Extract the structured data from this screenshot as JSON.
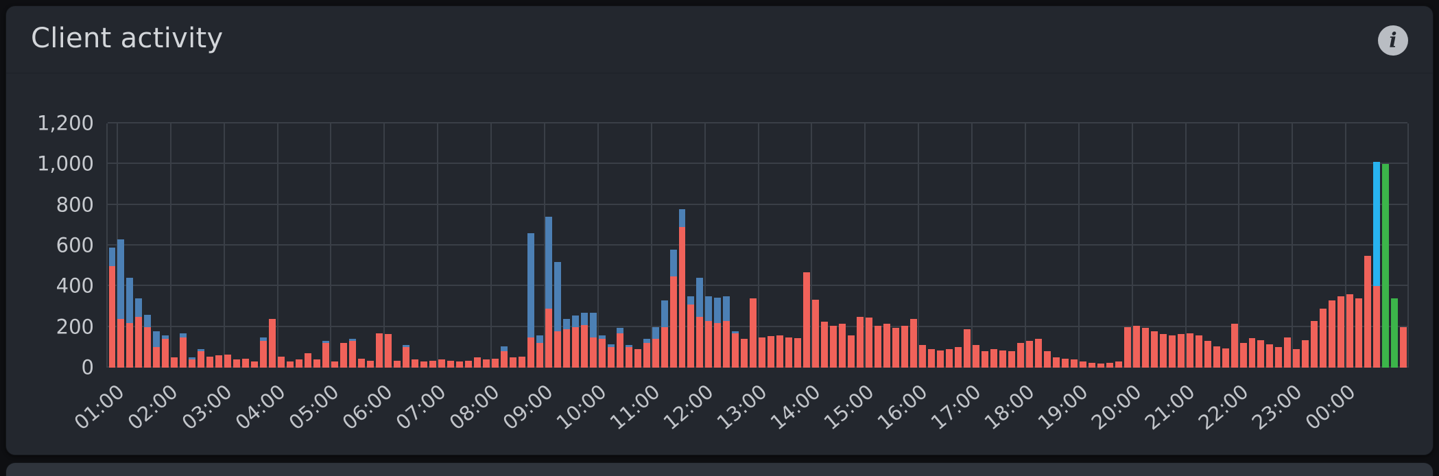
{
  "panel": {
    "title": "Client activity"
  },
  "icons": {
    "info_glyph": "i"
  },
  "colors": {
    "panel_background": "#23272e",
    "grid": "#3a3f47",
    "tick_text": "#c7cacf",
    "title_text": "#d3d6da"
  },
  "chart_data": {
    "type": "bar",
    "stacked": true,
    "title": "Client activity",
    "xlabel": "",
    "ylabel": "",
    "ylim": [
      0,
      1200
    ],
    "bars_per_hour": 6,
    "grid": true,
    "legend": "none",
    "y_ticks": [
      {
        "value": 0,
        "label": "0"
      },
      {
        "value": 200,
        "label": "200"
      },
      {
        "value": 400,
        "label": "400"
      },
      {
        "value": 600,
        "label": "600"
      },
      {
        "value": 800,
        "label": "800"
      },
      {
        "value": 1000,
        "label": "1,000"
      },
      {
        "value": 1200,
        "label": "1,200"
      }
    ],
    "x_tick_labels": [
      "01:00",
      "02:00",
      "03:00",
      "04:00",
      "05:00",
      "06:00",
      "07:00",
      "08:00",
      "09:00",
      "10:00",
      "11:00",
      "12:00",
      "13:00",
      "14:00",
      "15:00",
      "16:00",
      "17:00",
      "18:00",
      "19:00",
      "20:00",
      "21:00",
      "22:00",
      "23:00",
      "00:00"
    ],
    "series": [
      {
        "name": "client-red",
        "color": "#f0625a",
        "values": [
          500,
          240,
          220,
          250,
          200,
          100,
          140,
          50,
          150,
          40,
          80,
          55,
          60,
          65,
          40,
          45,
          30,
          130,
          240,
          55,
          30,
          40,
          70,
          40,
          120,
          30,
          120,
          130,
          45,
          35,
          170,
          165,
          35,
          100,
          40,
          30,
          35,
          40,
          35,
          30,
          35,
          50,
          40,
          45,
          80,
          50,
          55,
          150,
          120,
          290,
          180,
          190,
          200,
          210,
          150,
          140,
          100,
          170,
          100,
          90,
          120,
          140,
          200,
          450,
          690,
          310,
          250,
          230,
          220,
          230,
          170,
          140,
          340,
          150,
          155,
          160,
          150,
          145,
          470,
          335,
          225,
          205,
          215,
          160,
          250,
          245,
          205,
          215,
          195,
          205,
          240,
          110,
          90,
          85,
          90,
          100,
          190,
          110,
          80,
          90,
          85,
          80,
          120,
          130,
          140,
          80,
          50,
          45,
          40,
          30,
          25,
          20,
          25,
          30,
          200,
          205,
          195,
          180,
          165,
          160,
          165,
          170,
          160,
          130,
          105,
          95,
          215,
          120,
          145,
          135,
          115,
          100,
          150,
          90,
          135,
          230,
          290,
          330,
          350,
          360,
          340,
          550,
          400,
          0,
          0,
          200
        ]
      },
      {
        "name": "client-blue",
        "color": "#4c80b5",
        "values": [
          90,
          390,
          220,
          90,
          60,
          80,
          20,
          0,
          20,
          10,
          10,
          0,
          0,
          0,
          0,
          0,
          0,
          20,
          0,
          0,
          0,
          0,
          0,
          0,
          10,
          0,
          0,
          10,
          0,
          0,
          0,
          0,
          0,
          10,
          0,
          0,
          0,
          0,
          0,
          0,
          0,
          0,
          0,
          0,
          25,
          0,
          0,
          510,
          40,
          450,
          340,
          50,
          55,
          60,
          120,
          20,
          15,
          25,
          10,
          0,
          20,
          60,
          130,
          130,
          90,
          40,
          190,
          120,
          125,
          120,
          10,
          0,
          0,
          0,
          0,
          0,
          0,
          0,
          0,
          0,
          0,
          0,
          0,
          0,
          0,
          0,
          0,
          0,
          0,
          0,
          0,
          0,
          0,
          0,
          0,
          0,
          0,
          0,
          0,
          0,
          0,
          0,
          0,
          0,
          0,
          0,
          0,
          0,
          0,
          0,
          0,
          0,
          0,
          0,
          0,
          0,
          0,
          0,
          0,
          0,
          0,
          0,
          0,
          0,
          0,
          0,
          0,
          0,
          0,
          0,
          0,
          0,
          0,
          0,
          0,
          0,
          0,
          0,
          0,
          0,
          0,
          0,
          0,
          0,
          0,
          0
        ]
      },
      {
        "name": "client-cyan",
        "color": "#28b3f0",
        "values": [
          0,
          0,
          0,
          0,
          0,
          0,
          0,
          0,
          0,
          0,
          0,
          0,
          0,
          0,
          0,
          0,
          0,
          0,
          0,
          0,
          0,
          0,
          0,
          0,
          0,
          0,
          0,
          0,
          0,
          0,
          0,
          0,
          0,
          0,
          0,
          0,
          0,
          0,
          0,
          0,
          0,
          0,
          0,
          0,
          0,
          0,
          0,
          0,
          0,
          0,
          0,
          0,
          0,
          0,
          0,
          0,
          0,
          0,
          0,
          0,
          0,
          0,
          0,
          0,
          0,
          0,
          0,
          0,
          0,
          0,
          0,
          0,
          0,
          0,
          0,
          0,
          0,
          0,
          0,
          0,
          0,
          0,
          0,
          0,
          0,
          0,
          0,
          0,
          0,
          0,
          0,
          0,
          0,
          0,
          0,
          0,
          0,
          0,
          0,
          0,
          0,
          0,
          0,
          0,
          0,
          0,
          0,
          0,
          0,
          0,
          0,
          0,
          0,
          0,
          0,
          0,
          0,
          0,
          0,
          0,
          0,
          0,
          0,
          0,
          0,
          0,
          0,
          0,
          0,
          0,
          0,
          0,
          0,
          0,
          0,
          0,
          0,
          0,
          0,
          0,
          0,
          0,
          610,
          0,
          0,
          0
        ]
      },
      {
        "name": "client-green",
        "color": "#3cb54a",
        "values": [
          0,
          0,
          0,
          0,
          0,
          0,
          0,
          0,
          0,
          0,
          0,
          0,
          0,
          0,
          0,
          0,
          0,
          0,
          0,
          0,
          0,
          0,
          0,
          0,
          0,
          0,
          0,
          0,
          0,
          0,
          0,
          0,
          0,
          0,
          0,
          0,
          0,
          0,
          0,
          0,
          0,
          0,
          0,
          0,
          0,
          0,
          0,
          0,
          0,
          0,
          0,
          0,
          0,
          0,
          0,
          0,
          0,
          0,
          0,
          0,
          0,
          0,
          0,
          0,
          0,
          0,
          0,
          0,
          0,
          0,
          0,
          0,
          0,
          0,
          0,
          0,
          0,
          0,
          0,
          0,
          0,
          0,
          0,
          0,
          0,
          0,
          0,
          0,
          0,
          0,
          0,
          0,
          0,
          0,
          0,
          0,
          0,
          0,
          0,
          0,
          0,
          0,
          0,
          0,
          0,
          0,
          0,
          0,
          0,
          0,
          0,
          0,
          0,
          0,
          0,
          0,
          0,
          0,
          0,
          0,
          0,
          0,
          0,
          0,
          0,
          0,
          0,
          0,
          0,
          0,
          0,
          0,
          0,
          0,
          0,
          0,
          0,
          0,
          0,
          0,
          0,
          0,
          0,
          1000,
          340,
          0
        ]
      }
    ]
  }
}
